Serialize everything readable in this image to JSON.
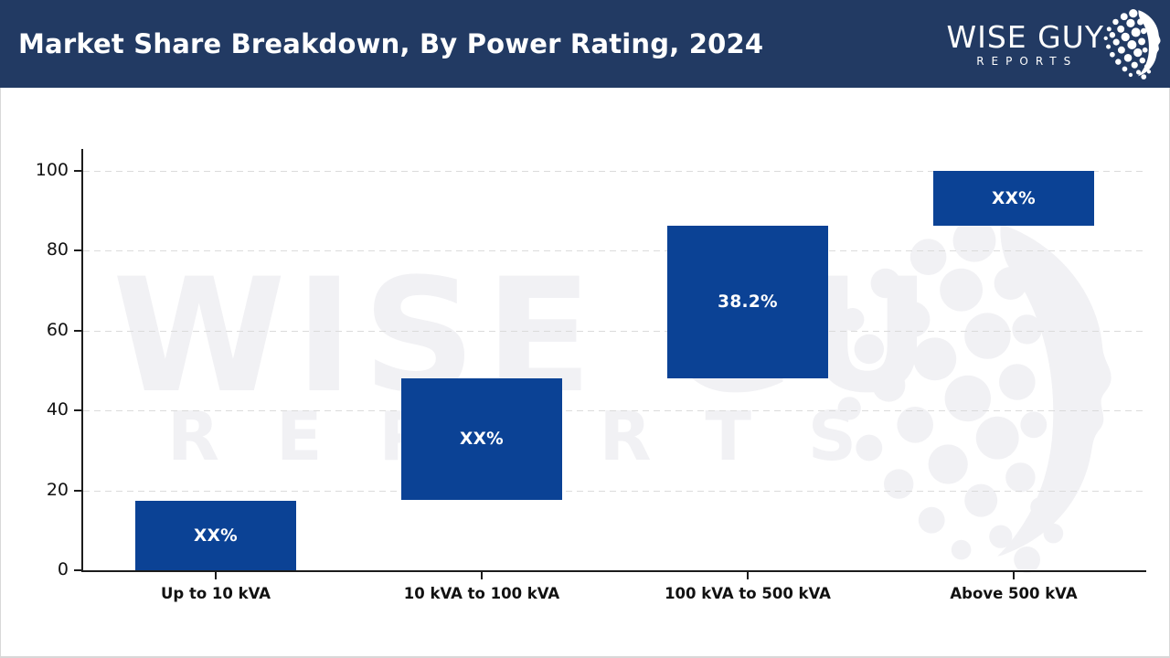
{
  "header": {
    "title": "Market Share Breakdown, By Power Rating, 2024",
    "logo": {
      "line1": "WISE GUY",
      "line2": "REPORTS"
    },
    "bg_color": "#223A63"
  },
  "watermark": {
    "line1": "WISE GU",
    "line2": "REPORTS"
  },
  "colors": {
    "header_bg": "#223A63",
    "bar": "#0B4295",
    "bar_label": "#FFFFFF",
    "axis": "#1C1C1C",
    "gridline": "#DBDBDB",
    "tick_text": "#111111",
    "watermark": "#F1F1F4",
    "page_border": "#D8D8D8"
  },
  "chart_data": {
    "type": "bar",
    "variant": "floating-waterfall-segments",
    "title": "Market Share Breakdown, By Power Rating, 2024",
    "categories": [
      "Up to 10 kVA",
      "10 kVA to 100 kVA",
      "100 kVA to 500 kVA",
      "Above 500 kVA"
    ],
    "series": [
      {
        "name": "Market share (%)",
        "segments": [
          {
            "category": "Up to 10 kVA",
            "start": 0,
            "end": 17.5,
            "value": 17.5,
            "label": "XX%"
          },
          {
            "category": "10 kVA to 100 kVA",
            "start": 17.5,
            "end": 48,
            "value": 30.5,
            "label": "XX%"
          },
          {
            "category": "100 kVA to 500 kVA",
            "start": 48,
            "end": 86.2,
            "value": 38.2,
            "label": "38.2%"
          },
          {
            "category": "Above 500 kVA",
            "start": 86.2,
            "end": 100,
            "value": 13.8,
            "label": "XX%"
          }
        ]
      }
    ],
    "xlabel": "",
    "ylabel": "",
    "yticks": [
      0,
      20,
      40,
      60,
      80,
      100
    ],
    "ylim": [
      0,
      105
    ],
    "grid": "horizontal-dashed",
    "legend": "none",
    "bar_color": "#0B4295"
  }
}
